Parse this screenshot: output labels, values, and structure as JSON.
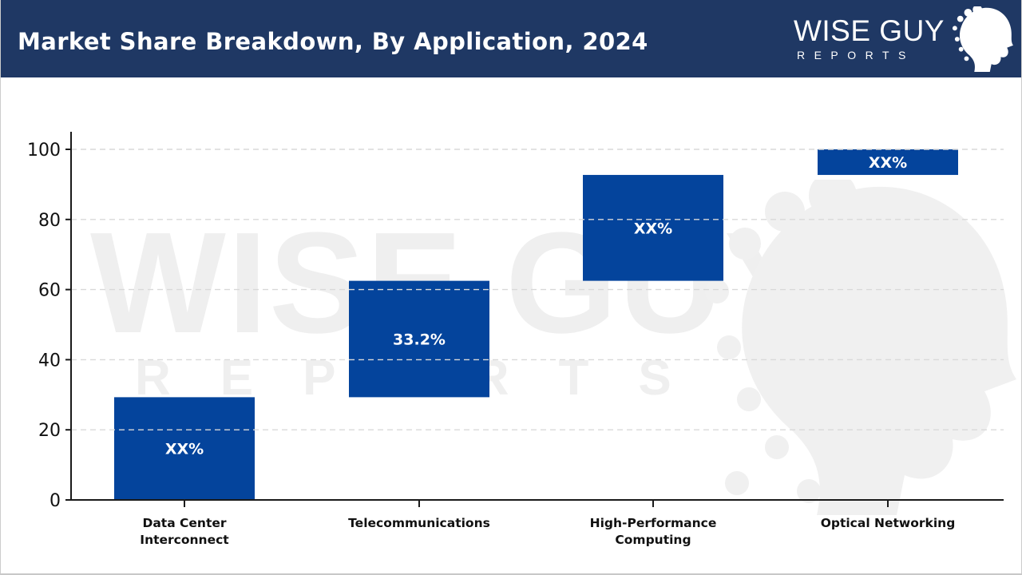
{
  "header": {
    "title": "Market Share Breakdown, By Application, 2024"
  },
  "brand": {
    "line1": "WISE GUY",
    "line2": "REPORTS",
    "head_icon": "dotted-face-profile-icon"
  },
  "watermark": {
    "line1": "WISE GUY",
    "line2": "REPORTS"
  },
  "chart_data": {
    "type": "bar",
    "subtype": "waterfall",
    "title": "Market Share Breakdown, By Application, 2024",
    "categories": [
      "Data Center Interconnect",
      "Telecommunications",
      "High-Performance Computing",
      "Optical Networking"
    ],
    "category_label_lines": [
      [
        "Data Center",
        "Interconnect"
      ],
      [
        "Telecommunications"
      ],
      [
        "High-Performance",
        "Computing"
      ],
      [
        "Optical Networking"
      ]
    ],
    "bars": [
      {
        "category": "Data Center Interconnect",
        "start": 0,
        "end": 29.3,
        "segment_value": 29.3,
        "label": "XX%"
      },
      {
        "category": "Telecommunications",
        "start": 29.3,
        "end": 62.5,
        "segment_value": 33.2,
        "label": "33.2%"
      },
      {
        "category": "High-Performance Computing",
        "start": 62.5,
        "end": 92.7,
        "segment_value": 30.2,
        "label": "XX%"
      },
      {
        "category": "Optical Networking",
        "start": 92.7,
        "end": 100,
        "segment_value": 7.3,
        "label": "XX%"
      }
    ],
    "xlabel": "",
    "ylabel": "",
    "ylim": [
      0,
      100
    ],
    "yticks": [
      0,
      20,
      40,
      60,
      80,
      100
    ],
    "grid": {
      "axis": "y",
      "style": "dashed",
      "color": "#d9d9d9"
    },
    "legend": "none",
    "bar_color": "#04449c",
    "bar_label_color": "#ffffff"
  },
  "colors": {
    "header_bg": "#1f3864",
    "bar": "#04449c",
    "axis": "#1a1a1a",
    "grid": "#d9d9d9",
    "watermark": "#efefef",
    "page_bg": "#ffffff",
    "title_text": "#ffffff"
  }
}
